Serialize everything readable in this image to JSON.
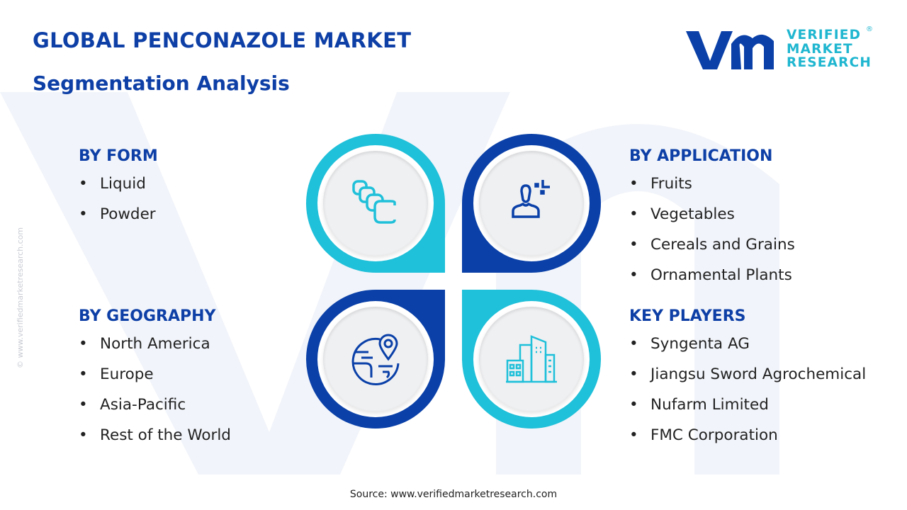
{
  "header": {
    "title": "GLOBAL PENCONAZOLE MARKET",
    "subtitle": "Segmentation Analysis"
  },
  "logo": {
    "line1": "VERIFIED",
    "line2": "MARKET",
    "line3": "RESEARCH",
    "mark": "vmr"
  },
  "watermark": "© www.verifiedmarketresearch.com",
  "colors": {
    "cyan": "#1fc0d9",
    "navy": "#0a40a8",
    "heading": "#0d3fa6"
  },
  "segments": {
    "form": {
      "title": "BY FORM",
      "items": [
        "Liquid",
        "Powder"
      ],
      "icon": "capsules-icon"
    },
    "application": {
      "title": "BY APPLICATION",
      "items": [
        "Fruits",
        "Vegetables",
        "Cereals and Grains",
        "Ornamental Plants"
      ],
      "icon": "user-icon"
    },
    "geography": {
      "title": "BY GEOGRAPHY",
      "items": [
        "North America",
        "Europe",
        "Asia-Pacific",
        "Rest of the World"
      ],
      "icon": "globe-pin-icon"
    },
    "players": {
      "title": "KEY PLAYERS",
      "items": [
        "Syngenta AG",
        "Jiangsu Sword Agrochemical",
        "Nufarm Limited",
        "FMC Corporation"
      ],
      "icon": "buildings-icon"
    }
  },
  "source": "Source: www.verifiedmarketresearch.com"
}
